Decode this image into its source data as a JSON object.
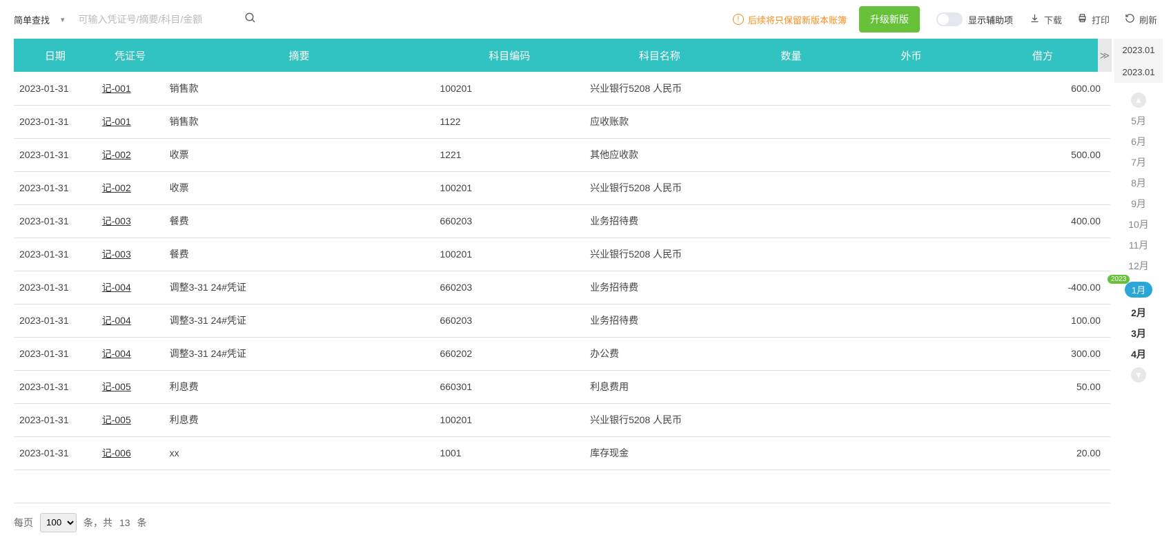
{
  "toolbar": {
    "search_mode_label": "简单查找",
    "search_placeholder": "可输入凭证号/摘要/科目/金额",
    "notice_text": "后续将只保留新版本账簿",
    "upgrade_label": "升级新版",
    "toggle_label": "显示辅助项",
    "download_label": "下载",
    "print_label": "打印",
    "refresh_label": "刷新"
  },
  "table": {
    "columns": {
      "date": "日期",
      "voucher": "凭证号",
      "summary": "摘要",
      "code": "科目编码",
      "name": "科目名称",
      "qty": "数量",
      "fx": "外币",
      "debit": "借方"
    },
    "rows": [
      {
        "date": "2023-01-31",
        "voucher": "记-001",
        "summary": "销售款",
        "code": "100201",
        "name": "兴业银行5208 人民币",
        "qty": "",
        "fx": "",
        "debit": "600.00"
      },
      {
        "date": "2023-01-31",
        "voucher": "记-001",
        "summary": "销售款",
        "code": "1122",
        "name": "应收账款",
        "qty": "",
        "fx": "",
        "debit": ""
      },
      {
        "date": "2023-01-31",
        "voucher": "记-002",
        "summary": "收票",
        "code": "1221",
        "name": "其他应收款",
        "qty": "",
        "fx": "",
        "debit": "500.00"
      },
      {
        "date": "2023-01-31",
        "voucher": "记-002",
        "summary": "收票",
        "code": "100201",
        "name": "兴业银行5208 人民币",
        "qty": "",
        "fx": "",
        "debit": ""
      },
      {
        "date": "2023-01-31",
        "voucher": "记-003",
        "summary": "餐费",
        "code": "660203",
        "name": "业务招待费",
        "qty": "",
        "fx": "",
        "debit": "400.00"
      },
      {
        "date": "2023-01-31",
        "voucher": "记-003",
        "summary": "餐费",
        "code": "100201",
        "name": "兴业银行5208 人民币",
        "qty": "",
        "fx": "",
        "debit": ""
      },
      {
        "date": "2023-01-31",
        "voucher": "记-004",
        "summary": "调整3-31 24#凭证",
        "code": "660203",
        "name": "业务招待费",
        "qty": "",
        "fx": "",
        "debit": "-400.00"
      },
      {
        "date": "2023-01-31",
        "voucher": "记-004",
        "summary": "调整3-31 24#凭证",
        "code": "660203",
        "name": "业务招待费",
        "qty": "",
        "fx": "",
        "debit": "100.00"
      },
      {
        "date": "2023-01-31",
        "voucher": "记-004",
        "summary": "调整3-31 24#凭证",
        "code": "660202",
        "name": "办公费",
        "qty": "",
        "fx": "",
        "debit": "300.00"
      },
      {
        "date": "2023-01-31",
        "voucher": "记-005",
        "summary": "利息费",
        "code": "660301",
        "name": "利息费用",
        "qty": "",
        "fx": "",
        "debit": "50.00"
      },
      {
        "date": "2023-01-31",
        "voucher": "记-005",
        "summary": "利息费",
        "code": "100201",
        "name": "兴业银行5208 人民币",
        "qty": "",
        "fx": "",
        "debit": ""
      },
      {
        "date": "2023-01-31",
        "voucher": "记-006",
        "summary": "xx",
        "code": "1001",
        "name": "库存现金",
        "qty": "",
        "fx": "",
        "debit": "20.00"
      }
    ]
  },
  "side": {
    "year_items": [
      "2023.01",
      "2023.01"
    ],
    "year_badge": "2023",
    "months_top": [
      "5月",
      "6月",
      "7月",
      "8月",
      "9月",
      "10月",
      "11月",
      "12月"
    ],
    "active_month": "1月",
    "months_bottom": [
      "2月",
      "3月",
      "4月"
    ]
  },
  "footer": {
    "per_page_label": "每页",
    "per_page_value": "100",
    "total_prefix": "条，共",
    "total": "13",
    "total_suffix": "条"
  }
}
